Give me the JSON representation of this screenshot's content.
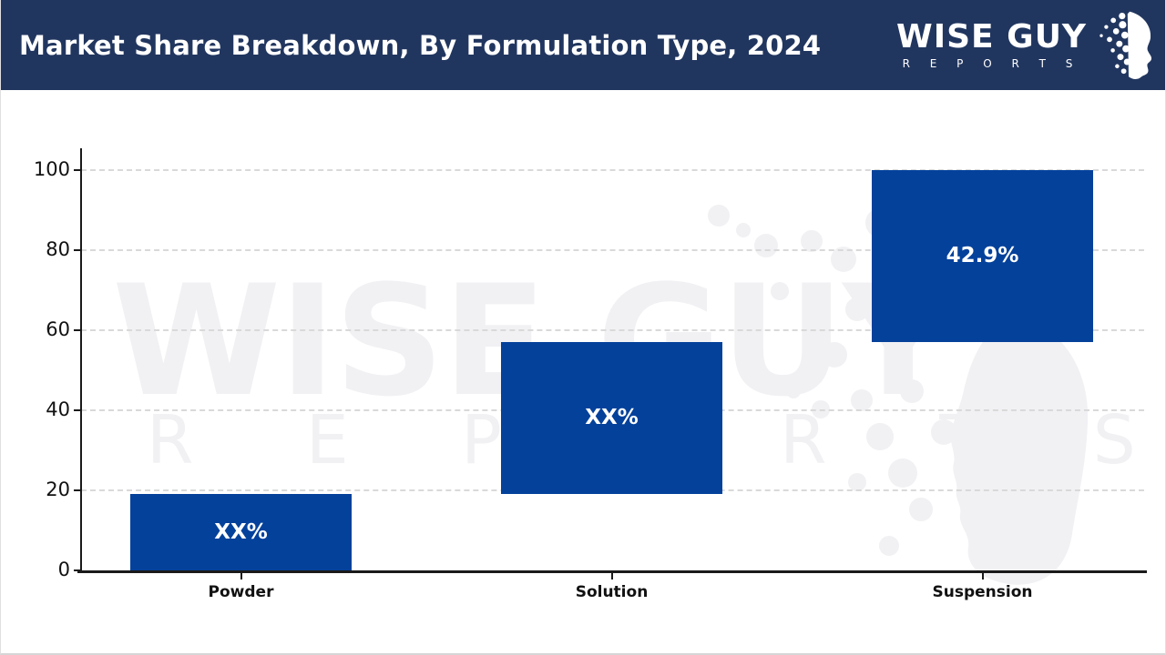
{
  "header": {
    "title": "Market Share Breakdown, By Formulation Type, 2024",
    "bg_color": "#21365F",
    "logo": {
      "line1": "WISE GUY",
      "line2": "R E P O R T S"
    }
  },
  "watermark": {
    "line1": "WISE GUY",
    "line2": "R E P O R T S"
  },
  "chart_data": {
    "type": "bar",
    "subtype": "floating-waterfall",
    "title": "Market Share Breakdown, By Formulation Type, 2024",
    "categories": [
      "Powder",
      "Solution",
      "Suspension"
    ],
    "series": [
      {
        "name": "Market Share (%)",
        "segments": [
          {
            "category": "Powder",
            "from": 0,
            "to": 19.2,
            "value": 19.2,
            "label": "XX%"
          },
          {
            "category": "Solution",
            "from": 19.2,
            "to": 57.1,
            "value": 37.9,
            "label": "XX%"
          },
          {
            "category": "Suspension",
            "from": 57.1,
            "to": 100,
            "value": 42.9,
            "label": "42.9%"
          }
        ]
      }
    ],
    "xlabel": "",
    "ylabel": "",
    "ylim": [
      0,
      105
    ],
    "yticks": [
      0,
      20,
      40,
      60,
      80,
      100
    ],
    "grid": "horizontal dashed, ticks 20-100",
    "legend": "none",
    "bar_color": "#04419B",
    "bar_label_color": "#FFFFFF",
    "axis_color": "#1A1A1A",
    "grid_color": "#D9D9D9",
    "tick_label_color": "#111111"
  }
}
